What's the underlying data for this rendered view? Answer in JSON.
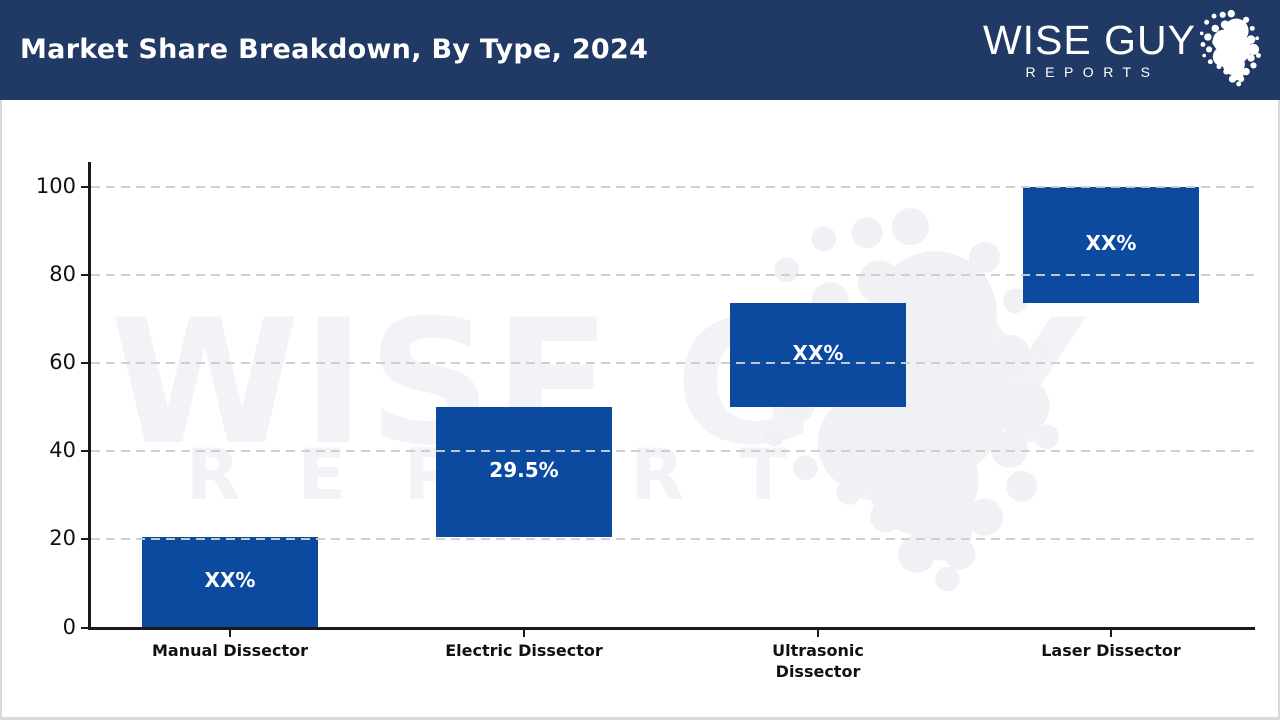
{
  "header": {
    "title": "Market Share Breakdown, By Type, 2024",
    "bg_color": "#213965",
    "brand": {
      "line1": "WISE GUY",
      "line2": "REPORTS"
    }
  },
  "watermark": {
    "line1": "WISE GUY",
    "line2": "REPORTS"
  },
  "chart_data": {
    "type": "bar",
    "subtype": "floating-range-bars",
    "title": "Market Share Breakdown, By Type, 2024",
    "xlabel": "",
    "ylabel": "",
    "categories": [
      "Manual Dissector",
      "Electric Dissector",
      "Ultrasonic\nDissector",
      "Laser Dissector"
    ],
    "segments": [
      {
        "category": "Manual Dissector",
        "start": 0,
        "end": 20.5,
        "label": "XX%"
      },
      {
        "category": "Electric Dissector",
        "start": 20.5,
        "end": 50,
        "label": "29.5%"
      },
      {
        "category": "Ultrasonic Dissector",
        "start": 50,
        "end": 73.5,
        "label": "XX%"
      },
      {
        "category": "Laser Dissector",
        "start": 73.5,
        "end": 100,
        "label": "XX%"
      }
    ],
    "yticks": [
      0,
      20,
      40,
      60,
      80,
      100
    ],
    "ylim": [
      0,
      105
    ],
    "grid": "dashed horizontal",
    "legend": "none",
    "bar_color": "#0b4a9f",
    "bar_label_color": "#ffffff",
    "axis_color": "#1a1a1a"
  }
}
